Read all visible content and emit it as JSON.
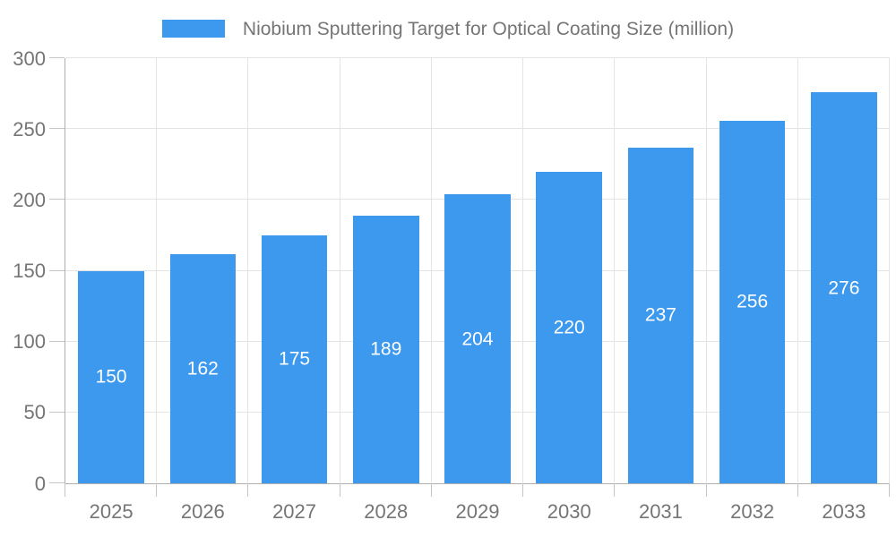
{
  "chart_data": {
    "type": "bar",
    "title": "Niobium Sputtering Target for Optical Coating Size (million)",
    "legend": [
      "Niobium Sputtering Target for Optical Coating Size (million)"
    ],
    "legend_position": "top",
    "categories": [
      "2025",
      "2026",
      "2027",
      "2028",
      "2029",
      "2030",
      "2031",
      "2032",
      "2033"
    ],
    "values": [
      150,
      162,
      175,
      189,
      204,
      220,
      237,
      256,
      276
    ],
    "xlabel": "",
    "ylabel": "",
    "ylim": [
      0,
      300
    ],
    "yticks": [
      0,
      50,
      100,
      150,
      200,
      250,
      300
    ],
    "grid": true,
    "bar_labels_shown": true
  },
  "colors": {
    "bar": "#3D99EE",
    "bar_label": "#FFFFFF",
    "grid": "#E4E4E4",
    "axis": "#AFAFAF",
    "tick": "#C6C6C6",
    "text": "#757575"
  }
}
